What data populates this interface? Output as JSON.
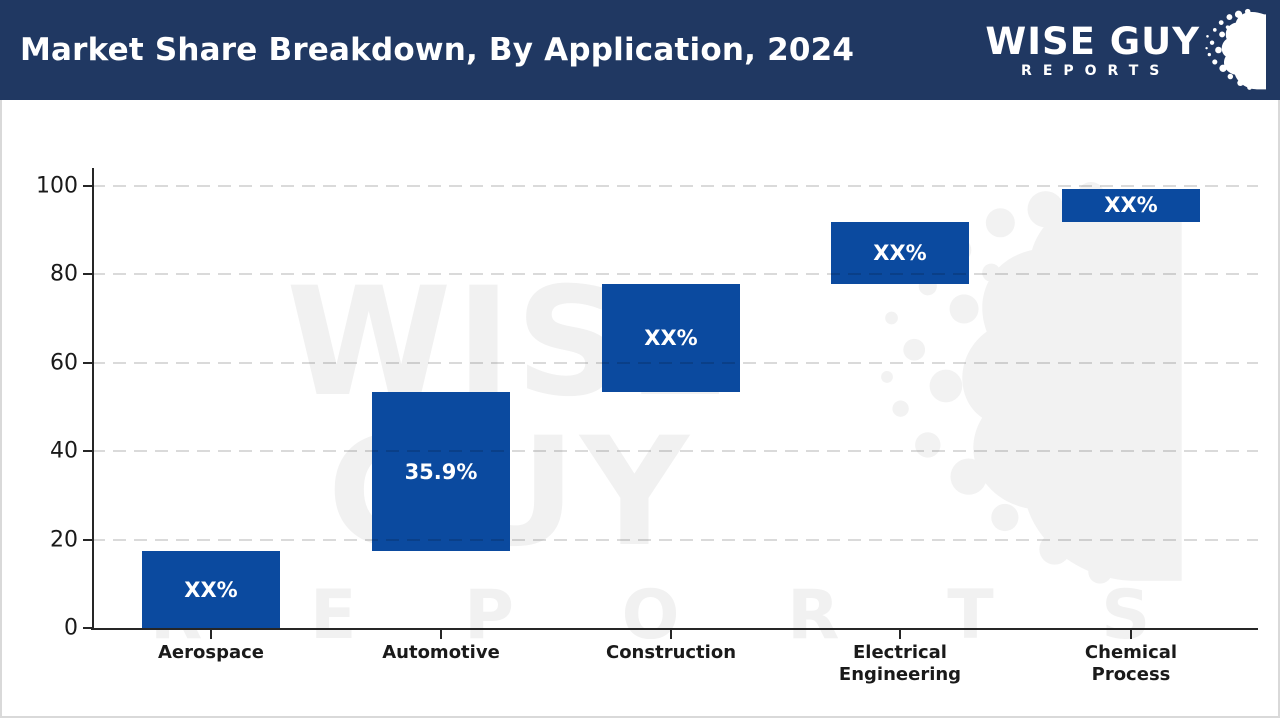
{
  "header": {
    "title": "Market Share Breakdown, By Application, 2024",
    "logo": {
      "line1": "WISE GUY",
      "line2": "REPORTS",
      "face_icon": "dotted-face-profile-icon"
    }
  },
  "watermark": {
    "line1": "WISE GUY",
    "line2": "R E P O R T S",
    "face_icon": "dotted-face-profile-watermark"
  },
  "colors": {
    "header_bg": "#203862",
    "bar": "#0b4a9f",
    "grid": "#d9d9d9",
    "axis": "#262626",
    "text_dark": "#1a1a1a",
    "watermark": "#f1f1f1",
    "bar_label_text": "#ffffff",
    "title_text": "#ffffff"
  },
  "chart_data": {
    "type": "bar",
    "subtype": "waterfall",
    "title": "Market Share Breakdown, By Application, 2024",
    "xlabel": "",
    "ylabel": "",
    "categories": [
      "Aerospace",
      "Automotive",
      "Construction",
      "Electrical Engineering",
      "Chemical Process"
    ],
    "segments": [
      {
        "category": "Aerospace",
        "start": 0,
        "end": 17.4,
        "label": "XX%"
      },
      {
        "category": "Automotive",
        "start": 17.4,
        "end": 53.3,
        "label": "35.9%"
      },
      {
        "category": "Construction",
        "start": 53.3,
        "end": 77.8,
        "label": "XX%"
      },
      {
        "category": "Electrical Engineering",
        "start": 77.8,
        "end": 91.9,
        "label": "XX%"
      },
      {
        "category": "Chemical Process",
        "start": 91.9,
        "end": 99.3,
        "label": "XX%"
      }
    ],
    "ylim": [
      0,
      100
    ],
    "yticks": [
      0,
      20,
      40,
      60,
      80,
      100
    ],
    "grid": "dashed-horizontal",
    "legend": "none"
  }
}
